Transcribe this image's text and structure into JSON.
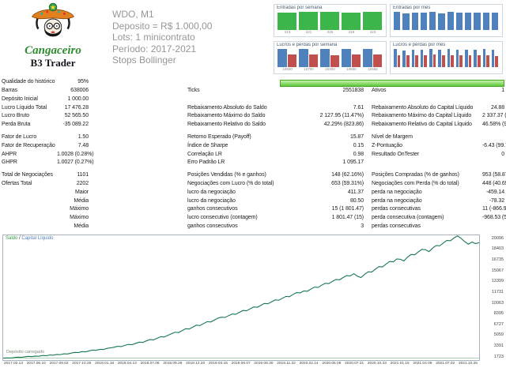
{
  "header": {
    "logo": {
      "line1": "Cangaceiro",
      "line2": "B3 Trader"
    },
    "title_lines": [
      "WDO, M1",
      "Deposito = R$ 1.000,00",
      "Lots: 1 minicontrato",
      "Período: 2017-2021",
      "Stops Bollinger"
    ]
  },
  "stats": {
    "rows": [
      {
        "l": "Qualidade do histórico",
        "v": "95%",
        "bar": true
      },
      {
        "l": "Barras",
        "v": "638006",
        "l2": "Ticks",
        "v2": "2551838",
        "l3": "Ativos",
        "v3": "1"
      },
      {
        "l": "Depósito Inicial",
        "v": "1 000.00",
        "l2": "",
        "v2": "",
        "l3": "",
        "v3": ""
      },
      {
        "l": "Lucro Líquido Total",
        "v": "17 476.28",
        "l2": "Rebaixamento Absoluto do Saldo",
        "v2": "7.61",
        "l3": "Rebaixamento Absoluto do Capital Líquido",
        "v3": "24.88"
      },
      {
        "l": "Lucro Bruto",
        "v": "52 565.50",
        "l2": "Rebaixamento Máximo do Saldo",
        "v2": "2 127.95 (11.47%)",
        "l3": "Rebaixamento Máximo do Capital Líquido",
        "v3": "2 337.37 (12.47%)"
      },
      {
        "l": "Perda Bruta",
        "v": "-35 089.22",
        "l2": "Rebaixamento Relativo do Saldo",
        "v2": "42.29% (823.86)",
        "l3": "Rebaixamento Relativo do Capital Líquido",
        "v3": "46.58% (955.69)"
      },
      {
        "gap": true
      },
      {
        "l": "Fator de Lucro",
        "v": "1.50",
        "l2": "Retorno Esperado (Payoff)",
        "v2": "15.87",
        "l3": "Nível de Margem",
        "v3": ""
      },
      {
        "l": "Fator de Recuperação",
        "v": "7.48",
        "l2": "Índice de Sharpe",
        "v2": "0.15",
        "l3": "Z-Pontuação",
        "v3": "-6.43 (99.74%)"
      },
      {
        "l": "AHPR",
        "v": "1.0028 (0.28%)",
        "l2": "Correlação LR",
        "v2": "0.98",
        "l3": "Resultado OnTester",
        "v3": "0"
      },
      {
        "l": "GHPR",
        "v": "1.0027 (0.27%)",
        "l2": "Erro Padrão LR",
        "v2": "1 095.17",
        "l3": "",
        "v3": ""
      },
      {
        "gap": true
      },
      {
        "l": "Total de Negociações",
        "v": "1101",
        "l2": "Posições Vendidas (% e ganhos)",
        "v2": "148 (62.16%)",
        "l3": "Posições Compradas (% de ganhos)",
        "v3": "953 (58.87%)"
      },
      {
        "l": "Ofertas Total",
        "v": "2202",
        "l2": "Negociações com Lucro (% do total)",
        "v2": "653 (59.31%)",
        "l3": "Negociações com Perda (% do total)",
        "v3": "448 (40.69%)"
      },
      {
        "l": "",
        "v": "Maior",
        "l2": "lucro da negociação",
        "v2": "411.37",
        "l3": "perda na negociação",
        "v3": "-459.14"
      },
      {
        "l": "",
        "v": "Média",
        "l2": "lucro da negociação",
        "v2": "80.50",
        "l3": "perda na negociação",
        "v3": "-78.32"
      },
      {
        "l": "",
        "v": "Máximo",
        "l2": "ganhos consecutivos",
        "v2": "15 (1 801.47)",
        "l3": "perdas consecutivas",
        "v3": "11 (-866.91)"
      },
      {
        "l": "",
        "v": "Máximo",
        "l2": "lucro consecutivo (contagem)",
        "v2": "1 801.47 (15)",
        "l3": "perda consecutiva (contagem)",
        "v3": "-968.53 (5)"
      },
      {
        "l": "",
        "v": "Média",
        "l2": "ganhos consecutivos",
        "v2": "3",
        "l3": "perdas consecutivas",
        "v3": ""
      }
    ]
  },
  "chart_data": [
    {
      "type": "bar",
      "title": "Entradas por semana",
      "categories": [
        "1",
        "2",
        "3",
        "4",
        "5"
      ],
      "values": [
        213,
        221,
        225,
        219,
        223
      ],
      "bar_labels": [
        "213",
        "221",
        "225",
        "219",
        "223"
      ],
      "color": "#3cb54a"
    },
    {
      "type": "bar",
      "title": "Entradas por mês",
      "categories": [
        "1",
        "2",
        "3",
        "4",
        "5",
        "6",
        "7",
        "8",
        "9",
        "10",
        "11",
        "12"
      ],
      "values": [
        95,
        88,
        93,
        90,
        96,
        89,
        94,
        92,
        91,
        90,
        93,
        90
      ],
      "color": "#4f81bd"
    },
    {
      "type": "bar",
      "title": "Lucros e perdas por semana",
      "categories": [
        "1",
        "2",
        "3",
        "4",
        "5"
      ],
      "series": [
        {
          "name": "lucro",
          "values": [
            10500,
            10700,
            10300,
            10600,
            10465
          ]
        },
        {
          "name": "perda",
          "values": [
            7000,
            7100,
            6900,
            7050,
            7039
          ]
        }
      ],
      "colors": [
        "#4f81bd",
        "#c0504d"
      ],
      "bar_labels": [
        "10500",
        "10700",
        "10300",
        "10600",
        "10465"
      ]
    },
    {
      "type": "bar",
      "title": "Lucros e perdas por mês",
      "categories": [
        "1",
        "2",
        "3",
        "4",
        "5",
        "6",
        "7",
        "8",
        "9",
        "10",
        "11",
        "12"
      ],
      "series": [
        {
          "name": "lucro",
          "values": [
            4500,
            4200,
            4400,
            4300,
            4600,
            4250,
            4450,
            4350,
            4400,
            4300,
            4500,
            4315
          ]
        },
        {
          "name": "perda",
          "values": [
            3000,
            2850,
            2950,
            2900,
            3050,
            2880,
            2960,
            2920,
            2940,
            2890,
            2980,
            2769
          ]
        }
      ],
      "colors": [
        "#4f81bd",
        "#c0504d"
      ]
    },
    {
      "type": "line",
      "title": "Saldo / Capital Líquido",
      "color": "#17784f",
      "deposit": 1000,
      "ylim": [
        700,
        20200
      ],
      "y_ticks": [
        "20096",
        "18403",
        "16735",
        "15067",
        "13399",
        "11731",
        "10063",
        "8395",
        "6727",
        "5059",
        "3391",
        "1723"
      ],
      "x_labels": [
        "2017.02.13",
        "2017.05.10",
        "2017.08.02",
        "2017.10.25",
        "2018.01.18",
        "2018.04.13",
        "2018.07.06",
        "2018.09.28",
        "2018.12.20",
        "2019.03.15",
        "2019.06.07",
        "2019.08.30",
        "2019.11.22",
        "2020.02.14",
        "2020.05.08",
        "2020.07.31",
        "2020.10.23",
        "2021.01.15",
        "2021.04.09",
        "2021.07.02",
        "2021.10.26"
      ],
      "values": [
        1000,
        1040,
        1015,
        1090,
        1150,
        1120,
        1200,
        1270,
        1240,
        1330,
        1300,
        1410,
        1380,
        1490,
        1460,
        1580,
        1550,
        1680,
        1650,
        1790,
        1900,
        1860,
        2010,
        1970,
        2120,
        2260,
        2220,
        2380,
        2340,
        2520,
        2600,
        2700,
        2850,
        2800,
        3000,
        3150,
        3100,
        3300,
        3500,
        3450,
        3700,
        3900,
        3850,
        4100,
        4350,
        4300,
        4550,
        4800,
        5050,
        5000,
        5300,
        5600,
        5550,
        5850,
        6150,
        6100,
        6400,
        6700,
        6650,
        6950,
        7250,
        7400,
        7350,
        7650,
        7900,
        7850,
        8150,
        8450,
        8400,
        8700,
        9000,
        8950,
        9250,
        9550,
        9500,
        9800,
        10100,
        10050,
        10350,
        10650,
        10600,
        10950,
        11250,
        11200,
        11500,
        11450,
        11800,
        12100,
        12050,
        12400,
        12700,
        12650,
        13000,
        13300,
        13250,
        13600,
        13900,
        13850,
        14200,
        13800,
        13600,
        14100,
        14500,
        14450,
        14900,
        15300,
        15250,
        15700,
        16100,
        16050,
        16500,
        16450,
        16200,
        16800,
        17200,
        17150,
        17600,
        18000,
        17950,
        17650,
        18200,
        18600,
        18550,
        19000,
        19400,
        19350,
        19800,
        20096,
        19700,
        19200,
        18800,
        19150,
        18900,
        19050
      ]
    }
  ],
  "balance_section": {
    "legend_saldo": "Saldo",
    "legend_sep": " / ",
    "legend_equity": "Capital Líquido",
    "saldo_color": "#2f9e44",
    "equity_color": "#4f81bd",
    "deposit_label": "Depósito carregado"
  }
}
